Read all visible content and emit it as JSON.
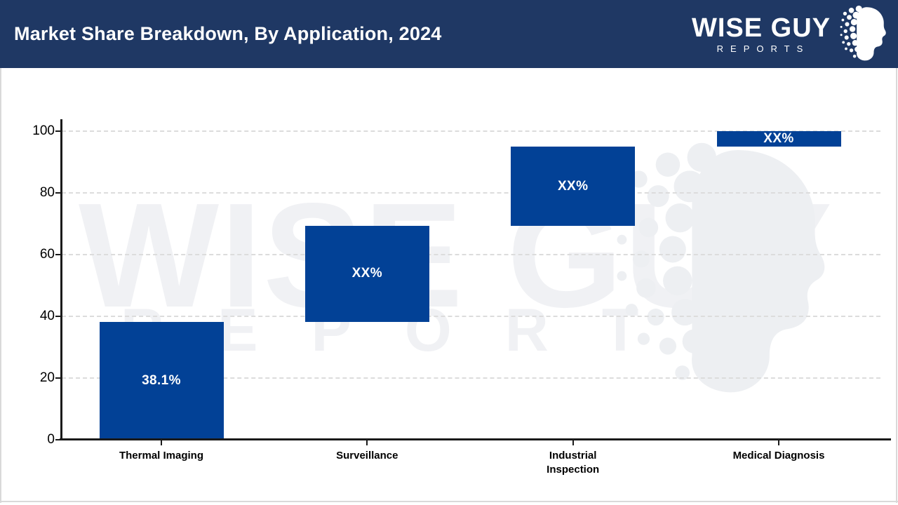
{
  "header": {
    "title": "Market Share Breakdown, By Application, 2024",
    "bg_color": "#1f3864",
    "logo": {
      "line1": "WISE GUY",
      "line2": "REPORTS",
      "face_icon": "dotted-head-profile"
    }
  },
  "watermark": {
    "line1": "WISE GUY",
    "line2": "REPORTS",
    "face_icon": "dotted-head-profile"
  },
  "chart_data": {
    "type": "bar",
    "subtype": "waterfall-breakdown",
    "title": "Market Share Breakdown, By Application, 2024",
    "categories": [
      "Thermal Imaging",
      "Surveillance",
      "Industrial Inspection",
      "Medical Diagnosis"
    ],
    "category_label_lines": [
      [
        "Thermal Imaging"
      ],
      [
        "Surveillance"
      ],
      [
        "Industrial",
        "Inspection"
      ],
      [
        "Medical Diagnosis"
      ]
    ],
    "segments": [
      {
        "category": "Thermal Imaging",
        "start": 0,
        "end": 38.1,
        "value_label": "38.1%"
      },
      {
        "category": "Surveillance",
        "start": 38.1,
        "end": 69.4,
        "value_label": "XX%"
      },
      {
        "category": "Industrial Inspection",
        "start": 69.4,
        "end": 94.9,
        "value_label": "XX%"
      },
      {
        "category": "Medical Diagnosis",
        "start": 95.0,
        "end": 100,
        "value_label": "XX%"
      }
    ],
    "yticks": [
      0,
      20,
      40,
      60,
      80,
      100
    ],
    "ylim": [
      0,
      105
    ],
    "xlabel": "",
    "ylabel": "",
    "grid": "horizontal-dashed",
    "legend": "none",
    "bar_color": "#024196",
    "value_label_color": "#ffffff",
    "axis_color": "#1a1a1a",
    "gridline_color": "#dcdcdc"
  }
}
